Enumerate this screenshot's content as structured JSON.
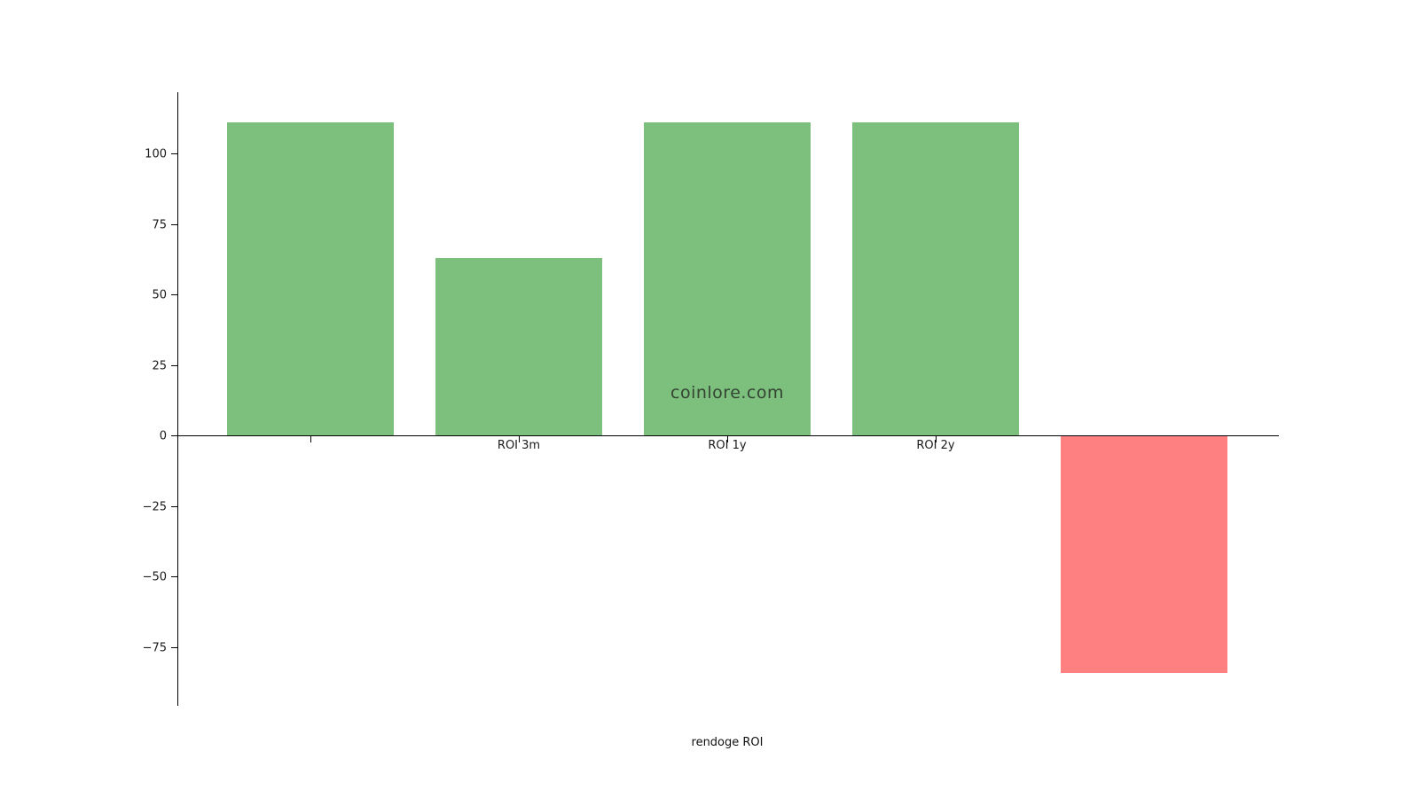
{
  "page": {
    "background": "#ffffff"
  },
  "chart_data": {
    "type": "bar",
    "title": "",
    "xlabel": "rendoge ROI",
    "ylabel": "",
    "categories": [
      "",
      "ROI 3m",
      "ROI 1y",
      "ROI 2y",
      ""
    ],
    "values": [
      111,
      63,
      111,
      111,
      -84
    ],
    "bar_colors": [
      "#7dbf7d",
      "#7dbf7d",
      "#7dbf7d",
      "#7dbf7d",
      "#ff8080"
    ],
    "positive_color": "#7dbf7d",
    "negative_color": "#ff8080",
    "y_ticks": [
      100,
      75,
      50,
      25,
      0,
      -25,
      -50,
      -75
    ],
    "ylim": [
      -95.9,
      121.7
    ],
    "grid": false,
    "legend": "none",
    "axis_color": "#000000",
    "watermark": {
      "text": "coinlore.com",
      "color_hex": "#334433"
    }
  }
}
